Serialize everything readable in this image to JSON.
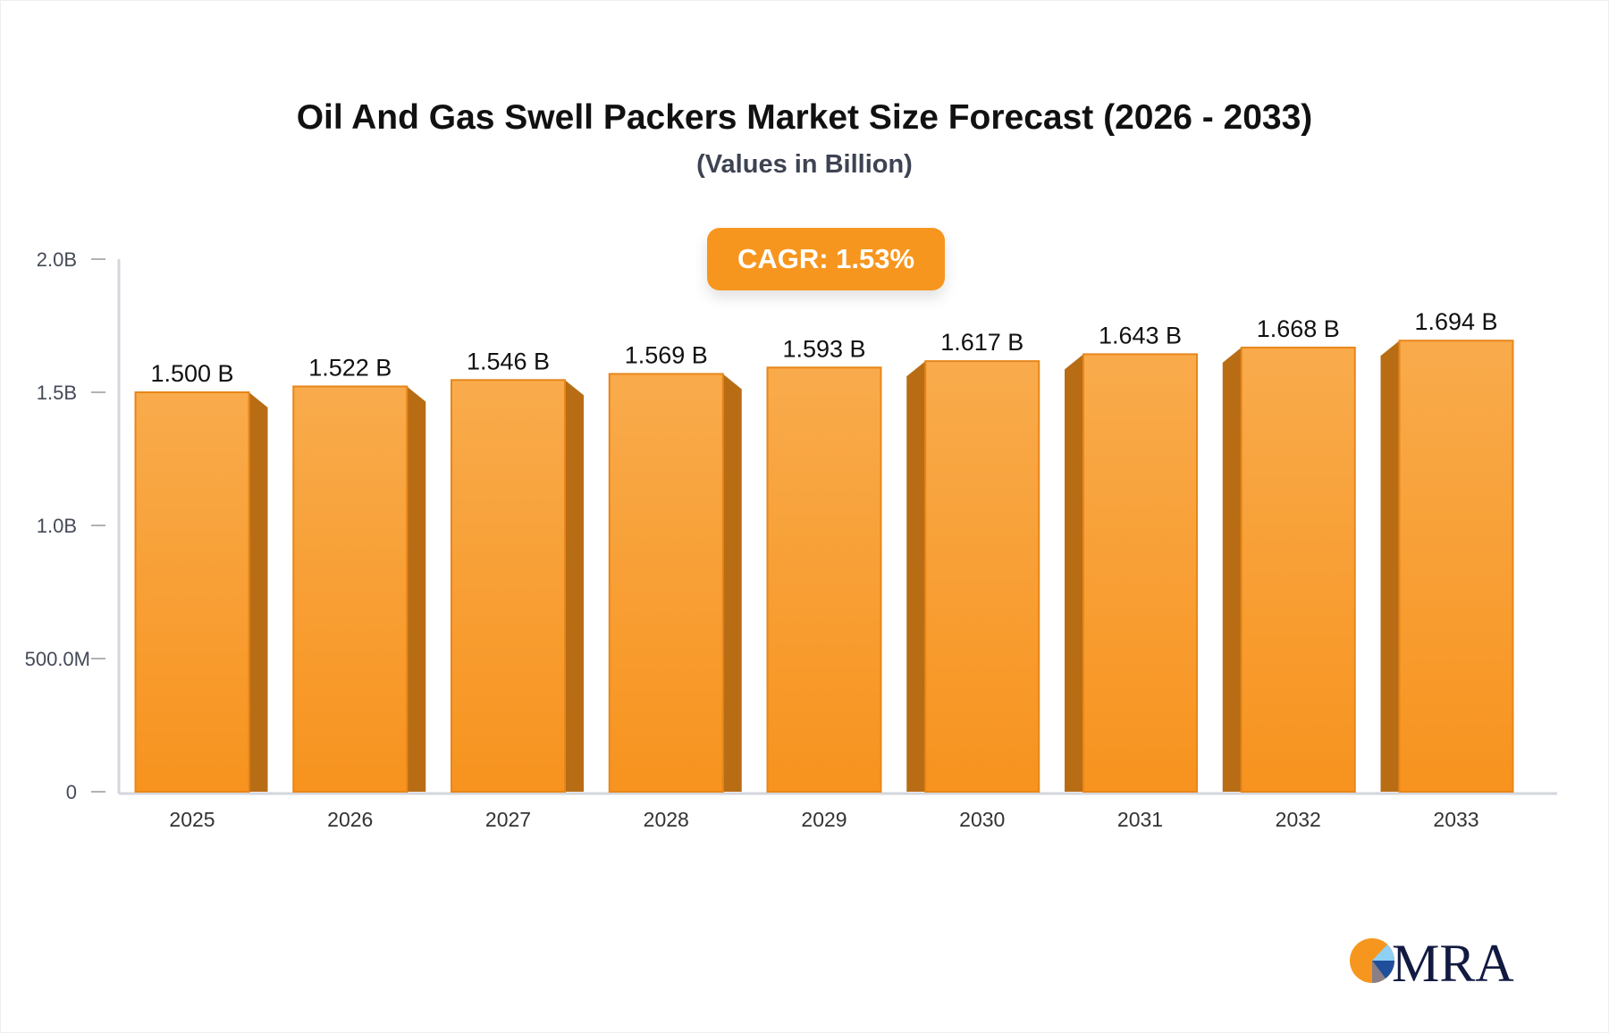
{
  "chart_data": {
    "type": "bar",
    "title": "Oil And Gas Swell Packers Market Size Forecast (2026 - 2033)",
    "subtitle": "(Values in Billion)",
    "annotation": "CAGR: 1.53%",
    "categories": [
      "2025",
      "2026",
      "2027",
      "2028",
      "2029",
      "2030",
      "2031",
      "2032",
      "2033"
    ],
    "values": [
      1.5,
      1.522,
      1.546,
      1.569,
      1.593,
      1.617,
      1.643,
      1.668,
      1.694
    ],
    "value_labels": [
      "1.500 B",
      "1.522 B",
      "1.546 B",
      "1.569 B",
      "1.593 B",
      "1.617 B",
      "1.643 B",
      "1.668 B",
      "1.694 B"
    ],
    "yticks": [
      0,
      0.5,
      1.0,
      1.5,
      2.0
    ],
    "ytick_labels": [
      "0",
      "500.0M",
      "1.0B",
      "1.5B",
      "2.0B"
    ],
    "ylim": [
      0,
      2.0
    ],
    "unit": "Billion",
    "grid": false,
    "colors": {
      "bar_front": "#f7961e",
      "bar_top": "#f9ab4c",
      "bar_side": "#b86d15",
      "axis": "#d4d6dc"
    }
  },
  "logo": {
    "text": "MRA"
  }
}
